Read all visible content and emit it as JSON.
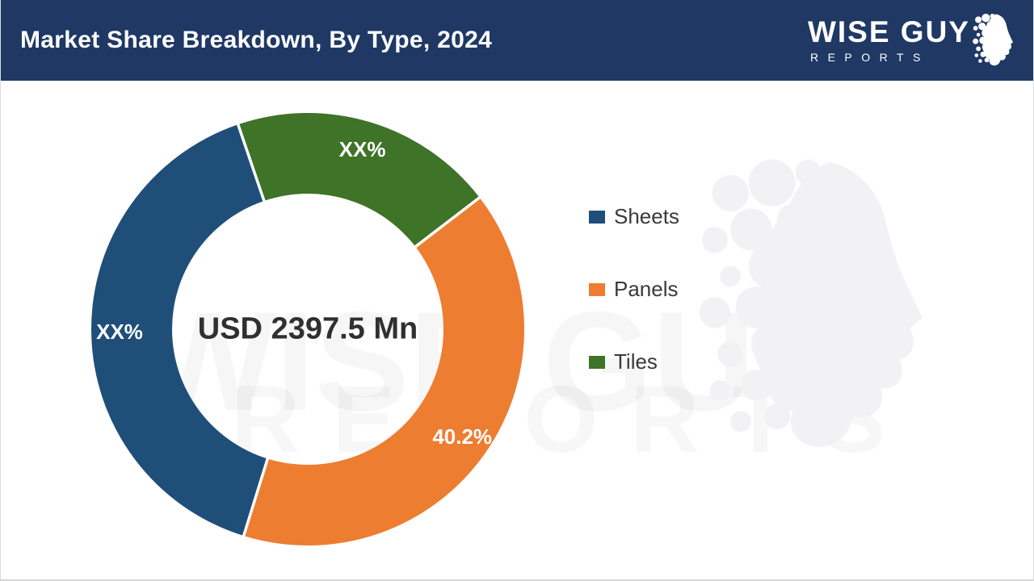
{
  "header": {
    "title": "Market Share Breakdown, By Type, 2024",
    "logo": {
      "line1": "WISE GUY",
      "line2": "REPORTS"
    }
  },
  "watermark": {
    "line1": "WISE GUY",
    "line2": "REPORTS"
  },
  "chart_data": {
    "type": "donut",
    "title": "Market Share Breakdown, By Type, 2024",
    "center_label": "USD 2397.5 Mn",
    "start_angle_deg": 37.5,
    "direction": "clockwise",
    "draw_order": [
      "Panels",
      "Sheets",
      "Tiles"
    ],
    "segments": [
      {
        "name": "Sheets",
        "value_pct": 40.0,
        "label": "XX%",
        "color": "#1F4E79"
      },
      {
        "name": "Panels",
        "value_pct": 40.2,
        "label": "40.2%",
        "color": "#ED7D31"
      },
      {
        "name": "Tiles",
        "value_pct": 19.8,
        "label": "XX%",
        "color": "#3F7328"
      }
    ],
    "legend": [
      "Sheets",
      "Panels",
      "Tiles"
    ],
    "legend_position": "right"
  },
  "colors": {
    "header_bg": "#1F3864",
    "title_text": "#FFFFFF",
    "center_text": "#303030",
    "legend_text": "#3A3A3A",
    "page_border": "#D9D9D9",
    "segment_label_text": "#FFFFFF"
  }
}
